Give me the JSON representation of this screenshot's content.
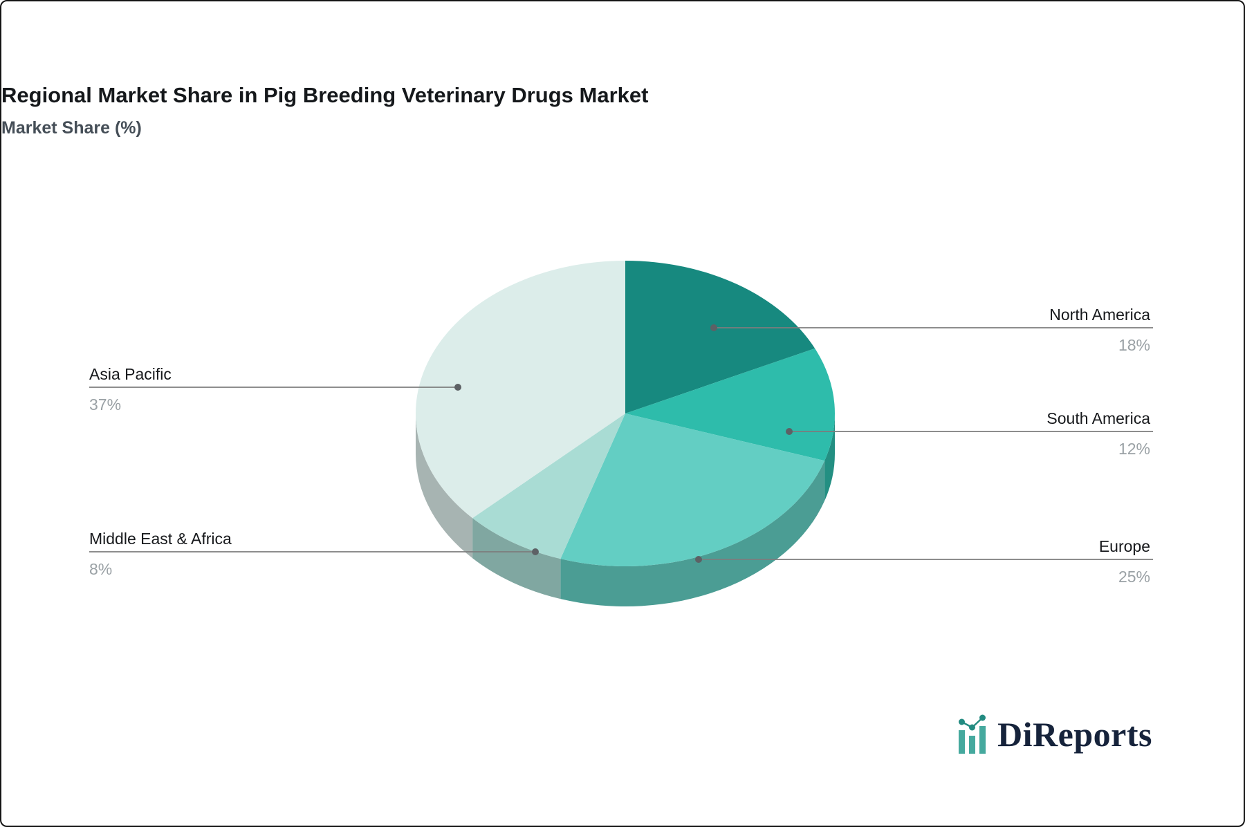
{
  "title": "Regional Market Share in Pig Breeding Veterinary Drugs Market",
  "subtitle": "Market Share (%)",
  "chart_data": {
    "type": "pie",
    "effect": "3d",
    "title": "Regional Market Share in Pig Breeding Veterinary Drugs Market",
    "subtitle": "Market Share (%)",
    "unit": "%",
    "start_angle_deg": 0,
    "direction": "clockwise",
    "legend_position": "callout-labels",
    "connector_color": "#7d7d7d",
    "connector_dot_color": "#5d6165",
    "label_color": "#17191c",
    "pct_color": "#9aa1a5",
    "slices": [
      {
        "label": "North America",
        "value": 18,
        "pct_label": "18%",
        "color": "#17897f"
      },
      {
        "label": "South America",
        "value": 12,
        "pct_label": "12%",
        "color": "#2ebcab"
      },
      {
        "label": "Europe",
        "value": 25,
        "pct_label": "25%",
        "color": "#63cec3"
      },
      {
        "label": "Middle East & Africa",
        "value": 8,
        "pct_label": "8%",
        "color": "#a9dcd4"
      },
      {
        "label": "Asia Pacific",
        "value": 37,
        "pct_label": "37%",
        "color": "#dcedea"
      }
    ]
  },
  "brand": {
    "logo_text": "DiReports",
    "icon": "bar-chart-logo-icon",
    "icon_bar_color": "#45a99e",
    "icon_dot_color": "#238b81",
    "text_color": "#16233b"
  }
}
